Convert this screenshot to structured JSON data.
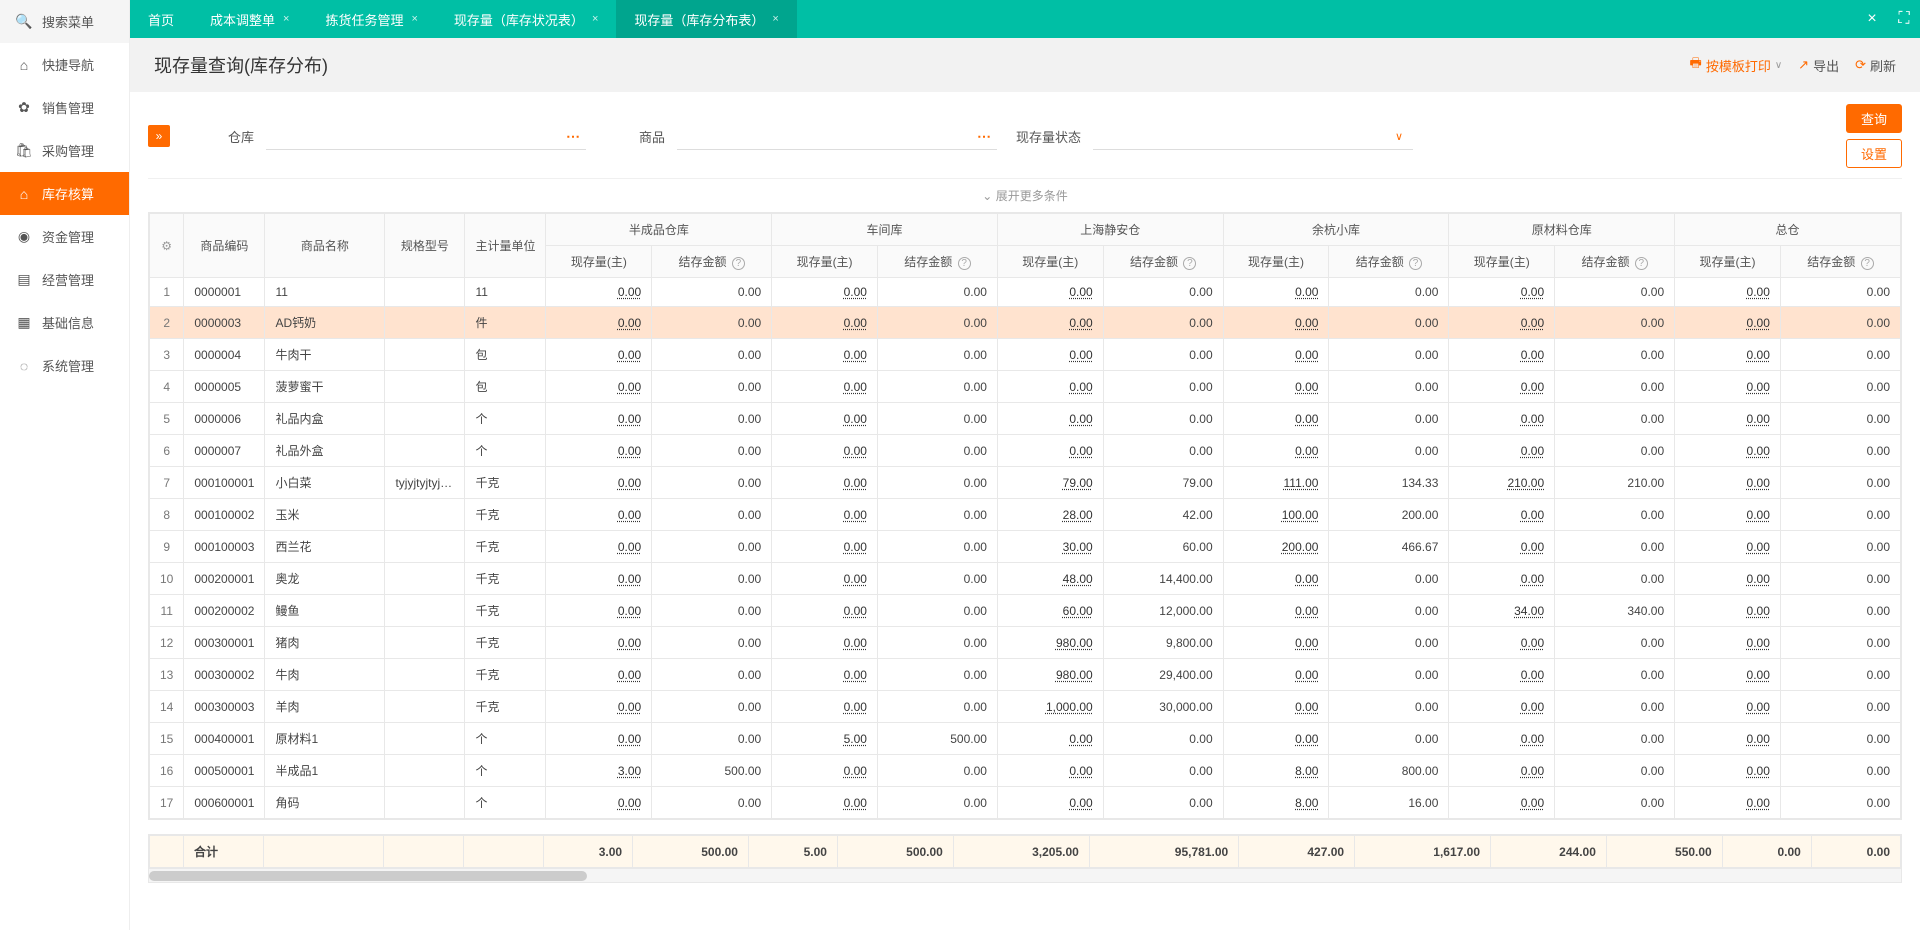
{
  "sidebar": {
    "items": [
      {
        "icon": "🔍",
        "label": "搜索菜单"
      },
      {
        "icon": "⌂",
        "label": "快捷导航"
      },
      {
        "icon": "✿",
        "label": "销售管理"
      },
      {
        "icon": "🛍",
        "label": "采购管理"
      },
      {
        "icon": "⌂",
        "label": "库存核算",
        "active": true
      },
      {
        "icon": "◉",
        "label": "资金管理"
      },
      {
        "icon": "▤",
        "label": "经营管理"
      },
      {
        "icon": "▦",
        "label": "基础信息"
      },
      {
        "icon": "◌",
        "label": "系统管理"
      }
    ]
  },
  "tabs": [
    {
      "label": "首页",
      "closable": false
    },
    {
      "label": "成本调整单",
      "closable": true
    },
    {
      "label": "拣货任务管理",
      "closable": true
    },
    {
      "label": "现存量（库存状况表）",
      "closable": true
    },
    {
      "label": "现存量（库存分布表）",
      "closable": true,
      "active": true
    }
  ],
  "header": {
    "title": "现存量查询(库存分布)",
    "print": "按模板打印",
    "export": "导出",
    "refresh": "刷新"
  },
  "filters": {
    "warehouse_label": "仓库",
    "product_label": "商品",
    "status_label": "现存量状态",
    "query": "查询",
    "settings": "设置",
    "expand": "展开更多条件"
  },
  "table": {
    "fixed_headers": {
      "code": "商品编码",
      "name": "商品名称",
      "spec": "规格型号",
      "unit": "主计量单位"
    },
    "warehouses": [
      "半成品仓库",
      "车间库",
      "上海静安仓",
      "余杭小库",
      "原材料仓库",
      "总仓"
    ],
    "sub_headers": {
      "qty": "现存量(主)",
      "amt": "结存金额"
    },
    "rows": [
      {
        "idx": 1,
        "code": "0000001",
        "name": "11",
        "spec": "",
        "unit": "11",
        "vals": [
          [
            "0.00",
            "0.00"
          ],
          [
            "0.00",
            "0.00"
          ],
          [
            "0.00",
            "0.00"
          ],
          [
            "0.00",
            "0.00"
          ],
          [
            "0.00",
            "0.00"
          ],
          [
            "0.00",
            "0.00"
          ]
        ]
      },
      {
        "idx": 2,
        "code": "0000003",
        "name": "AD钙奶",
        "spec": "",
        "unit": "件",
        "highlight": true,
        "vals": [
          [
            "0.00",
            "0.00"
          ],
          [
            "0.00",
            "0.00"
          ],
          [
            "0.00",
            "0.00"
          ],
          [
            "0.00",
            "0.00"
          ],
          [
            "0.00",
            "0.00"
          ],
          [
            "0.00",
            "0.00"
          ]
        ]
      },
      {
        "idx": 3,
        "code": "0000004",
        "name": "牛肉干",
        "spec": "",
        "unit": "包",
        "vals": [
          [
            "0.00",
            "0.00"
          ],
          [
            "0.00",
            "0.00"
          ],
          [
            "0.00",
            "0.00"
          ],
          [
            "0.00",
            "0.00"
          ],
          [
            "0.00",
            "0.00"
          ],
          [
            "0.00",
            "0.00"
          ]
        ]
      },
      {
        "idx": 4,
        "code": "0000005",
        "name": "菠萝蜜干",
        "spec": "",
        "unit": "包",
        "vals": [
          [
            "0.00",
            "0.00"
          ],
          [
            "0.00",
            "0.00"
          ],
          [
            "0.00",
            "0.00"
          ],
          [
            "0.00",
            "0.00"
          ],
          [
            "0.00",
            "0.00"
          ],
          [
            "0.00",
            "0.00"
          ]
        ]
      },
      {
        "idx": 5,
        "code": "0000006",
        "name": "礼品内盒",
        "spec": "",
        "unit": "个",
        "vals": [
          [
            "0.00",
            "0.00"
          ],
          [
            "0.00",
            "0.00"
          ],
          [
            "0.00",
            "0.00"
          ],
          [
            "0.00",
            "0.00"
          ],
          [
            "0.00",
            "0.00"
          ],
          [
            "0.00",
            "0.00"
          ]
        ]
      },
      {
        "idx": 6,
        "code": "0000007",
        "name": "礼品外盒",
        "spec": "",
        "unit": "个",
        "vals": [
          [
            "0.00",
            "0.00"
          ],
          [
            "0.00",
            "0.00"
          ],
          [
            "0.00",
            "0.00"
          ],
          [
            "0.00",
            "0.00"
          ],
          [
            "0.00",
            "0.00"
          ],
          [
            "0.00",
            "0.00"
          ]
        ]
      },
      {
        "idx": 7,
        "code": "000100001",
        "name": "小白菜",
        "spec": "tyjyjtyjtyjdf...",
        "unit": "千克",
        "vals": [
          [
            "0.00",
            "0.00"
          ],
          [
            "0.00",
            "0.00"
          ],
          [
            "79.00",
            "79.00"
          ],
          [
            "111.00",
            "134.33"
          ],
          [
            "210.00",
            "210.00"
          ],
          [
            "0.00",
            "0.00"
          ]
        ]
      },
      {
        "idx": 8,
        "code": "000100002",
        "name": "玉米",
        "spec": "",
        "unit": "千克",
        "vals": [
          [
            "0.00",
            "0.00"
          ],
          [
            "0.00",
            "0.00"
          ],
          [
            "28.00",
            "42.00"
          ],
          [
            "100.00",
            "200.00"
          ],
          [
            "0.00",
            "0.00"
          ],
          [
            "0.00",
            "0.00"
          ]
        ]
      },
      {
        "idx": 9,
        "code": "000100003",
        "name": "西兰花",
        "spec": "",
        "unit": "千克",
        "vals": [
          [
            "0.00",
            "0.00"
          ],
          [
            "0.00",
            "0.00"
          ],
          [
            "30.00",
            "60.00"
          ],
          [
            "200.00",
            "466.67"
          ],
          [
            "0.00",
            "0.00"
          ],
          [
            "0.00",
            "0.00"
          ]
        ]
      },
      {
        "idx": 10,
        "code": "000200001",
        "name": "奥龙",
        "spec": "",
        "unit": "千克",
        "vals": [
          [
            "0.00",
            "0.00"
          ],
          [
            "0.00",
            "0.00"
          ],
          [
            "48.00",
            "14,400.00"
          ],
          [
            "0.00",
            "0.00"
          ],
          [
            "0.00",
            "0.00"
          ],
          [
            "0.00",
            "0.00"
          ]
        ]
      },
      {
        "idx": 11,
        "code": "000200002",
        "name": "鳗鱼",
        "spec": "",
        "unit": "千克",
        "vals": [
          [
            "0.00",
            "0.00"
          ],
          [
            "0.00",
            "0.00"
          ],
          [
            "60.00",
            "12,000.00"
          ],
          [
            "0.00",
            "0.00"
          ],
          [
            "34.00",
            "340.00"
          ],
          [
            "0.00",
            "0.00"
          ]
        ]
      },
      {
        "idx": 12,
        "code": "000300001",
        "name": "猪肉",
        "spec": "",
        "unit": "千克",
        "vals": [
          [
            "0.00",
            "0.00"
          ],
          [
            "0.00",
            "0.00"
          ],
          [
            "980.00",
            "9,800.00"
          ],
          [
            "0.00",
            "0.00"
          ],
          [
            "0.00",
            "0.00"
          ],
          [
            "0.00",
            "0.00"
          ]
        ]
      },
      {
        "idx": 13,
        "code": "000300002",
        "name": "牛肉",
        "spec": "",
        "unit": "千克",
        "vals": [
          [
            "0.00",
            "0.00"
          ],
          [
            "0.00",
            "0.00"
          ],
          [
            "980.00",
            "29,400.00"
          ],
          [
            "0.00",
            "0.00"
          ],
          [
            "0.00",
            "0.00"
          ],
          [
            "0.00",
            "0.00"
          ]
        ]
      },
      {
        "idx": 14,
        "code": "000300003",
        "name": "羊肉",
        "spec": "",
        "unit": "千克",
        "vals": [
          [
            "0.00",
            "0.00"
          ],
          [
            "0.00",
            "0.00"
          ],
          [
            "1,000.00",
            "30,000.00"
          ],
          [
            "0.00",
            "0.00"
          ],
          [
            "0.00",
            "0.00"
          ],
          [
            "0.00",
            "0.00"
          ]
        ]
      },
      {
        "idx": 15,
        "code": "000400001",
        "name": "原材料1",
        "spec": "",
        "unit": "个",
        "vals": [
          [
            "0.00",
            "0.00"
          ],
          [
            "5.00",
            "500.00"
          ],
          [
            "0.00",
            "0.00"
          ],
          [
            "0.00",
            "0.00"
          ],
          [
            "0.00",
            "0.00"
          ],
          [
            "0.00",
            "0.00"
          ]
        ]
      },
      {
        "idx": 16,
        "code": "000500001",
        "name": "半成品1",
        "spec": "",
        "unit": "个",
        "vals": [
          [
            "3.00",
            "500.00"
          ],
          [
            "0.00",
            "0.00"
          ],
          [
            "0.00",
            "0.00"
          ],
          [
            "8.00",
            "800.00"
          ],
          [
            "0.00",
            "0.00"
          ],
          [
            "0.00",
            "0.00"
          ]
        ]
      },
      {
        "idx": 17,
        "code": "000600001",
        "name": "角码",
        "spec": "",
        "unit": "个",
        "vals": [
          [
            "0.00",
            "0.00"
          ],
          [
            "0.00",
            "0.00"
          ],
          [
            "0.00",
            "0.00"
          ],
          [
            "8.00",
            "16.00"
          ],
          [
            "0.00",
            "0.00"
          ],
          [
            "0.00",
            "0.00"
          ]
        ]
      }
    ],
    "totals": {
      "label": "合计",
      "vals": [
        "3.00",
        "500.00",
        "5.00",
        "500.00",
        "3,205.00",
        "95,781.00",
        "427.00",
        "1,617.00",
        "244.00",
        "550.00",
        "0.00",
        "0.00"
      ]
    }
  },
  "colors": {
    "primary": "#ff6a00",
    "teal": "#00bfa5",
    "teal_dark": "#00a58e",
    "highlight": "#ffe3cf",
    "totals_bg": "#fff8ec"
  }
}
